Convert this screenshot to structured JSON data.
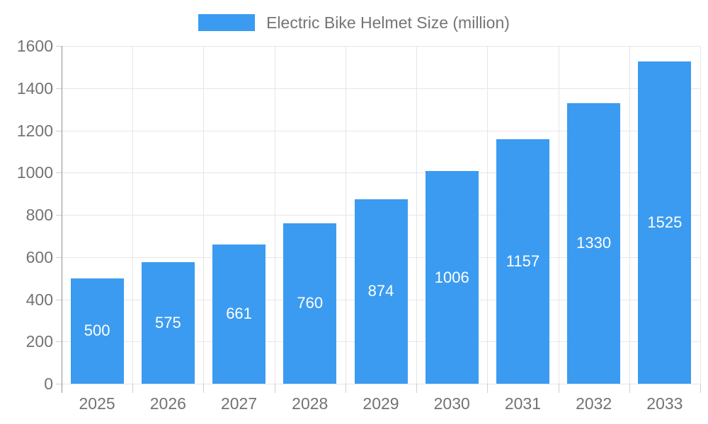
{
  "chart_data": {
    "type": "bar",
    "title": "Electric Bike Helmet Size (million)",
    "categories": [
      "2025",
      "2026",
      "2027",
      "2028",
      "2029",
      "2030",
      "2031",
      "2032",
      "2033"
    ],
    "series": [
      {
        "name": "Electric Bike Helmet Size (million)",
        "values": [
          500,
          575,
          661,
          760,
          874,
          1006,
          1157,
          1330,
          1525
        ]
      }
    ],
    "value_labels_shown": true,
    "value_label_position": "inside-center",
    "xlabel": "",
    "ylabel": "",
    "ylim": [
      0,
      1600
    ],
    "yticks": [
      0,
      200,
      400,
      600,
      800,
      1000,
      1200,
      1400,
      1600
    ],
    "grid": true,
    "legend_position": "top-center",
    "colors": {
      "bar": "#3B9BF0",
      "value_label": "#FFFFFF",
      "axis_text": "#737373",
      "legend_text": "#757575",
      "gridline": "#E6E6E6",
      "tick": "#CFCFCF",
      "axis_line": "#8F8F8F",
      "background": "#FFFFFF"
    }
  }
}
